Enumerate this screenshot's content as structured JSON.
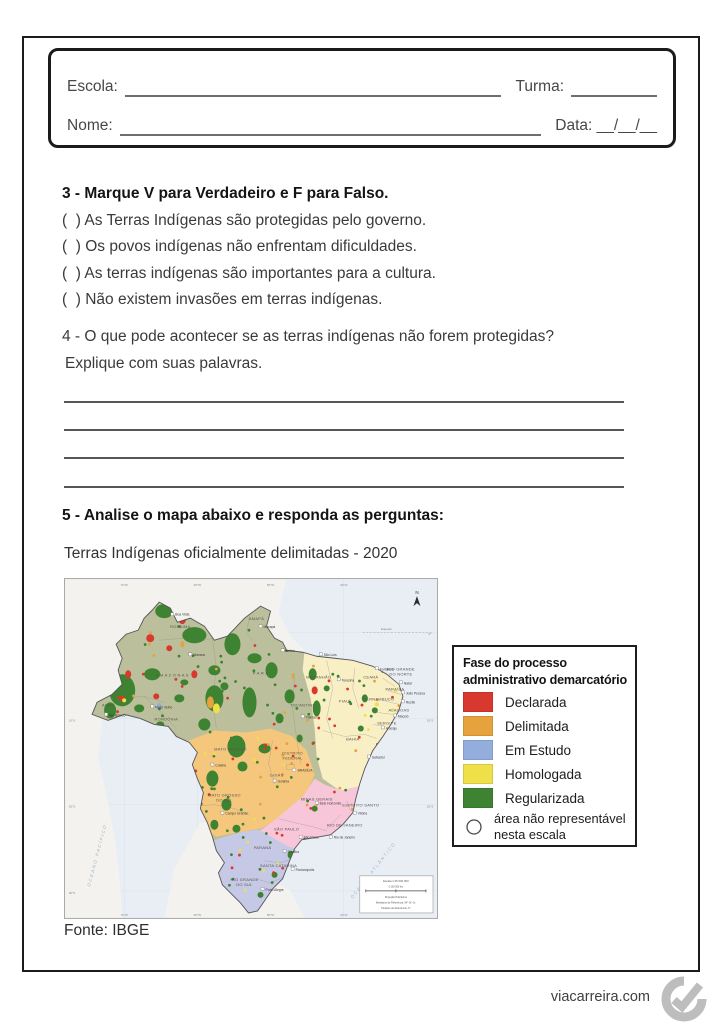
{
  "document": {
    "header": {
      "school_label": "Escola:",
      "class_label": "Turma:",
      "name_label": "Nome:",
      "date_label": "Data: __/__/__"
    },
    "q3": {
      "title": "3 - Marque V para Verdadeiro e F para Falso.",
      "items": [
        "(  ) As Terras Indígenas são protegidas pelo governo.",
        "(  ) Os povos indígenas não enfrentam dificuldades.",
        "(  ) As terras indígenas são importantes para a cultura.",
        "(  ) Não existem invasões em terras indígenas."
      ]
    },
    "q4": {
      "line1": "4 - O que pode acontecer se as terras indígenas não forem protegidas?",
      "line2": "Explique com suas palavras."
    },
    "q5": {
      "title": "5 - Analise o mapa abaixo e responda as perguntas:"
    },
    "map_title": "Terras Indígenas oficialmente delimitadas - 2020",
    "map_source": "Fonte: IBGE",
    "footer_site": "viacarreira.com"
  },
  "legend": {
    "title_line1": "Fase do processo",
    "title_line2": "administrativo demarcatório",
    "items": [
      {
        "label": "Declarada",
        "color": "#d8382e"
      },
      {
        "label": "Delimitada",
        "color": "#e6a23c"
      },
      {
        "label": "Em Estudo",
        "color": "#93aedd"
      },
      {
        "label": "Homologada",
        "color": "#efe04a"
      },
      {
        "label": "Regularizada",
        "color": "#3e8331"
      }
    ],
    "circle_item": {
      "line1": "área não representável",
      "line2": "nesta escala"
    }
  },
  "map": {
    "north_label": "N",
    "equator_label": "Equador",
    "ocean_pacific": "OCEANO PACÍFICO",
    "ocean_atlantic": "OCEANO ATLÂNTICO",
    "scale_lines": [
      "Escala 1:25 000 000",
      "0        250       500 km",
      "Projeção Policônica",
      "Meridiano de Referência: 54° W. Gr.",
      "Paralelo de Referência: 0°"
    ],
    "graticule": {
      "top": [
        "70°W",
        "60°W",
        "50°W",
        "40°W"
      ],
      "bottom": [
        "70°W",
        "60°W",
        "50°W",
        "40°W"
      ],
      "left": [
        "10°S",
        "20°S",
        "30°S"
      ],
      "right": [
        "0°",
        "10°S",
        "20°S",
        "30°S"
      ]
    },
    "states": [
      {
        "label": "RORAIMA"
      },
      {
        "label": "AMAPÁ"
      },
      {
        "label": "A M A Z O N A S"
      },
      {
        "label": "P A R Á"
      },
      {
        "label": "ACRE"
      },
      {
        "label": "RONDÔNIA"
      },
      {
        "label": "MATO GROSSO"
      },
      {
        "label": "TOCANTINS"
      },
      {
        "label": "MARANHÃO"
      },
      {
        "label": "PIAUÍ"
      },
      {
        "label": "CEARÁ"
      },
      {
        "label": "RIO GRANDE"
      },
      {
        "label": "DO NORTE"
      },
      {
        "label": "PARAÍBA"
      },
      {
        "label": "PERNAMBUCO"
      },
      {
        "label": "ALAGOAS"
      },
      {
        "label": "SERGIPE"
      },
      {
        "label": "BAHIA"
      },
      {
        "label": "GOIÁS"
      },
      {
        "label": "DISTRITO"
      },
      {
        "label": "FEDERAL"
      },
      {
        "label": "MINAS GERAIS"
      },
      {
        "label": "ESPÍRITO SANTO"
      },
      {
        "label": "SÃO PAULO"
      },
      {
        "label": "RIO DE JANEIRO"
      },
      {
        "label": "MATO GROSSO"
      },
      {
        "label": "DO SUL"
      },
      {
        "label": "PARANÁ"
      },
      {
        "label": "SANTA CATARINA"
      },
      {
        "label": "RIO GRANDE"
      },
      {
        "label": "DO SUL"
      }
    ],
    "cities": [
      {
        "label": "Boa Vista"
      },
      {
        "label": "Macapá"
      },
      {
        "label": "Belém"
      },
      {
        "label": "Manaus"
      },
      {
        "label": "São Luís"
      },
      {
        "label": "Fortaleza"
      },
      {
        "label": "Natal"
      },
      {
        "label": "João Pessoa"
      },
      {
        "label": "Recife"
      },
      {
        "label": "Maceió"
      },
      {
        "label": "Aracaju"
      },
      {
        "label": "Salvador"
      },
      {
        "label": "Teresina"
      },
      {
        "label": "Palmas"
      },
      {
        "label": "Rio Branco"
      },
      {
        "label": "Porto Velho"
      },
      {
        "label": "Cuiabá"
      },
      {
        "label": "BRASÍLIA"
      },
      {
        "label": "Goiânia"
      },
      {
        "label": "Campo Grande"
      },
      {
        "label": "Belo Horizonte"
      },
      {
        "label": "Vitória"
      },
      {
        "label": "Rio de Janeiro"
      },
      {
        "label": "São Paulo"
      },
      {
        "label": "Curitiba"
      },
      {
        "label": "Florianópolis"
      },
      {
        "label": "Porto Alegre"
      }
    ]
  }
}
